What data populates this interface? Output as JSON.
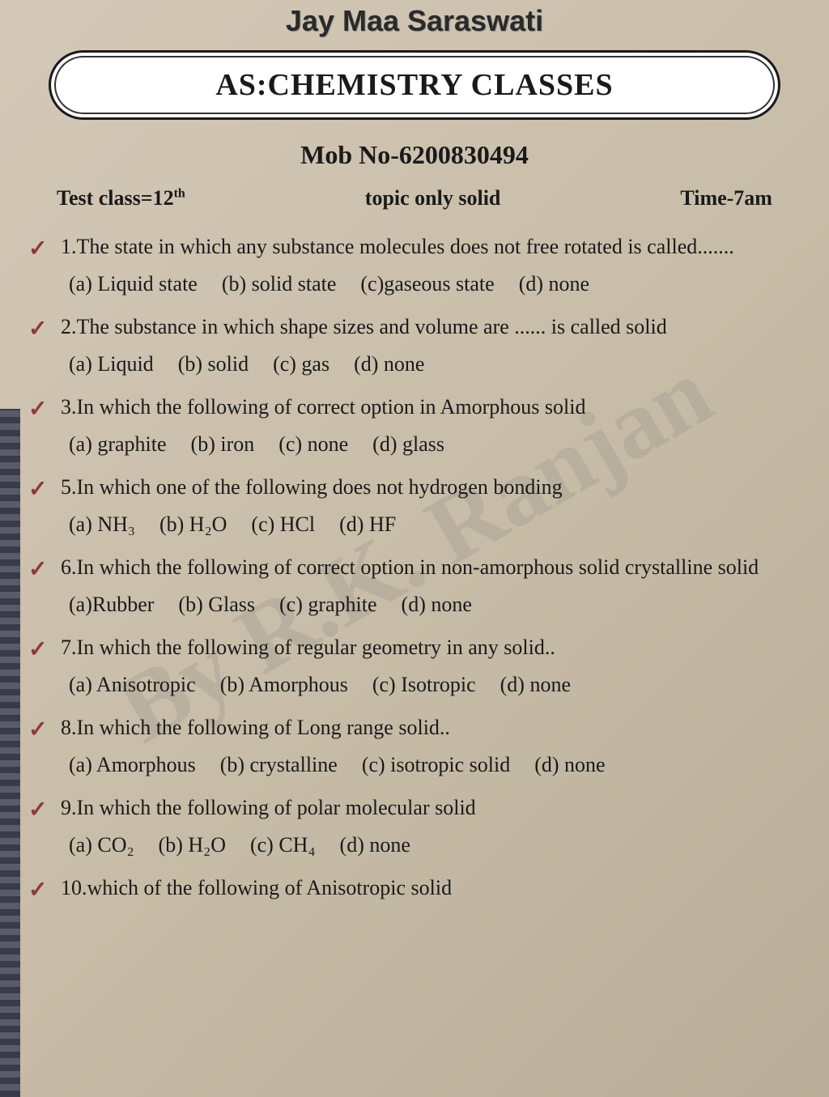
{
  "header": {
    "top_title": "Jay Maa Saraswati",
    "banner": "AS:CHEMISTRY CLASSES",
    "mob_no": "Mob No-6200830494",
    "test_class_label": "Test class=12",
    "test_class_sup": "th",
    "topic": "topic only solid",
    "time": "Time-7am"
  },
  "watermark": "By R.K. Ranjan",
  "questions": [
    {
      "num": "1.",
      "text": "The state in which any substance molecules does not free rotated is called.......",
      "options": [
        "(a) Liquid state",
        "(b) solid state",
        "(c)gaseous state",
        "(d) none"
      ],
      "checked": true
    },
    {
      "num": "2.",
      "text": "The substance in which shape sizes and volume are ...... is called solid",
      "options": [
        "(a) Liquid",
        "(b) solid",
        "(c) gas",
        "(d) none"
      ],
      "checked": true
    },
    {
      "num": "3.",
      "text": "In which the following of correct option in Amorphous solid",
      "options": [
        "(a) graphite",
        "(b) iron",
        "(c) none",
        "(d) glass"
      ],
      "checked": true
    },
    {
      "num": "5.",
      "text": "In which one of the following does not hydrogen bonding",
      "options": [
        "(a) NH₃",
        "(b) H₂O",
        "(c) HCl",
        "(d) HF"
      ],
      "checked": true
    },
    {
      "num": "6.",
      "text": "In which the following of correct option in non-amorphous solid crystalline solid",
      "options": [
        "(a)Rubber",
        "(b) Glass",
        "(c) graphite",
        "(d) none"
      ],
      "checked": true
    },
    {
      "num": "7.",
      "text": "In which the following of regular geometry in any solid..",
      "options": [
        "(a) Anisotropic",
        "(b) Amorphous",
        "(c) Isotropic",
        "(d) none"
      ],
      "checked": true
    },
    {
      "num": "8.",
      "text": "In which the following of Long range solid..",
      "options": [
        "(a) Amorphous",
        "(b) crystalline",
        "(c) isotropic solid",
        "(d) none"
      ],
      "checked": true
    },
    {
      "num": "9.",
      "text": "In which the following of polar molecular solid",
      "options": [
        "(a) CO₂",
        "(b) H₂O",
        "(c) CH₄",
        "(d) none"
      ],
      "checked": true
    },
    {
      "num": "10.",
      "text": "which of the following of Anisotropic solid",
      "options": [],
      "checked": true
    }
  ],
  "styling": {
    "page_bg": "#c8bda8",
    "text_color": "#1a1a1a",
    "banner_bg": "#ffffff",
    "banner_border": "#1a1a1a",
    "checkmark_color": "#8b3a3a",
    "watermark_color": "rgba(100,100,110,0.15)",
    "body_font": "Georgia, Times New Roman, serif",
    "title_fontsize": 36,
    "banner_fontsize": 38,
    "mob_fontsize": 32,
    "info_fontsize": 26,
    "question_fontsize": 26
  }
}
